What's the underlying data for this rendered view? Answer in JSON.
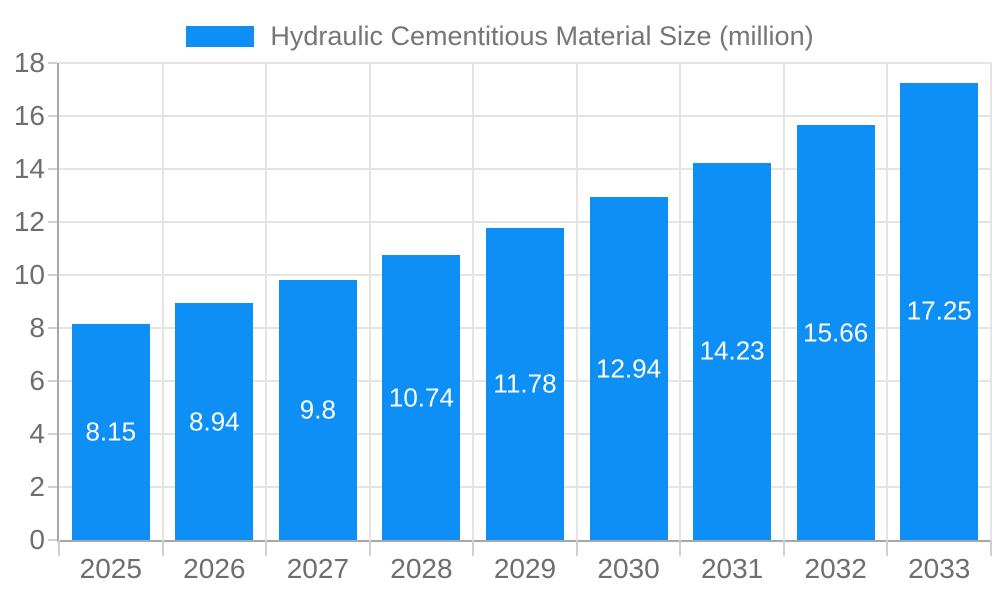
{
  "legend": {
    "label": "Hydraulic Cementitious Material Size (million)"
  },
  "colors": {
    "bar": "#0d8ff5",
    "grid": "#e4e4e4",
    "axis": "#a8a8a8",
    "tick": "#d0d0d0",
    "axis_label": "#6e6e6e",
    "legend_text": "#757575",
    "value_label": "#ffffff",
    "background": "#ffffff"
  },
  "chart_data": {
    "type": "bar",
    "title": "",
    "xlabel": "",
    "ylabel": "",
    "categories": [
      "2025",
      "2026",
      "2027",
      "2028",
      "2029",
      "2030",
      "2031",
      "2032",
      "2033"
    ],
    "series": [
      {
        "name": "Hydraulic Cementitious Material Size (million)",
        "values": [
          8.15,
          8.94,
          9.8,
          10.74,
          11.78,
          12.94,
          14.23,
          15.66,
          17.25
        ],
        "color": "#0d8ff5"
      }
    ],
    "value_labels": [
      "8.15",
      "8.94",
      "9.8",
      "10.74",
      "11.78",
      "12.94",
      "14.23",
      "15.66",
      "17.25"
    ],
    "ylim": [
      0,
      18
    ],
    "yticks": [
      0,
      2,
      4,
      6,
      8,
      10,
      12,
      14,
      16,
      18
    ],
    "grid": true,
    "legend_position": "top-center",
    "bar_label_position": "center"
  }
}
